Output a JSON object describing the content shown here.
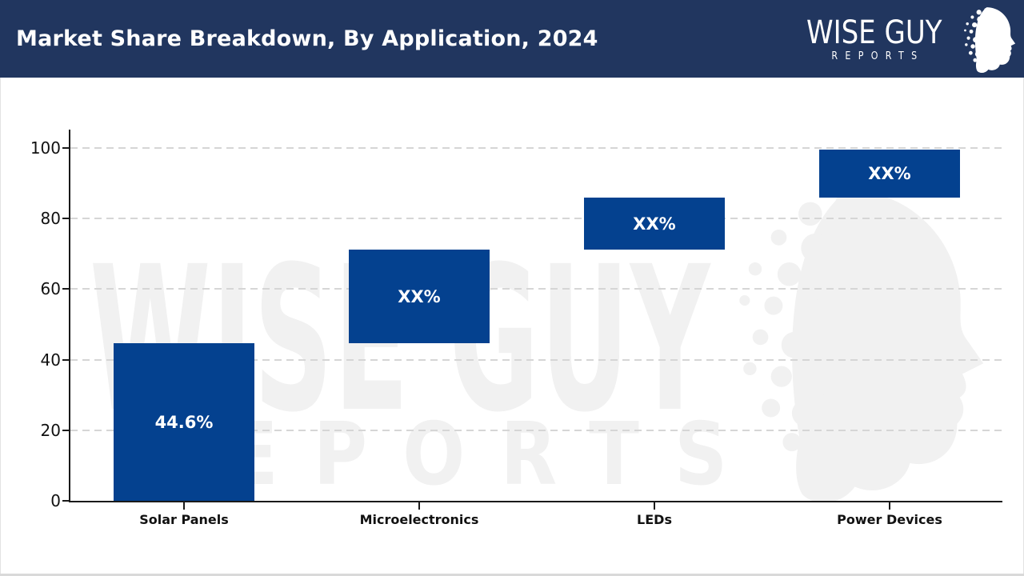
{
  "header": {
    "title": "Market Share Breakdown, By Application, 2024",
    "logo": {
      "line1": "WISE GUY",
      "line2": "REPORTS"
    }
  },
  "watermark": {
    "line1": "WISE GUY",
    "line2": "REPORTS"
  },
  "chart_data": {
    "type": "bar",
    "subtype": "waterfall",
    "title": "Market Share Breakdown, By Application, 2024",
    "categories": [
      "Solar Panels",
      "Microelectronics",
      "LEDs",
      "Power Devices"
    ],
    "segments": [
      {
        "category": "Solar Panels",
        "start": 0,
        "end": 44.6,
        "label": "44.6%"
      },
      {
        "category": "Microelectronics",
        "start": 44.6,
        "end": 71.1,
        "label": "XX%"
      },
      {
        "category": "LEDs",
        "start": 71.1,
        "end": 86.0,
        "label": "XX%"
      },
      {
        "category": "Power Devices",
        "start": 86.0,
        "end": 99.5,
        "label": "XX%"
      }
    ],
    "values_masked": true,
    "xlabel": "",
    "ylabel": "",
    "ylim": [
      0,
      105
    ],
    "yticks": [
      0,
      20,
      40,
      60,
      80,
      100
    ],
    "grid": "horizontal-dashed",
    "legend": "none",
    "bar_color": "#04418f"
  },
  "colors": {
    "header_bg": "#21365f",
    "bar": "#04418f",
    "bar_label": "#ffffff",
    "grid": "#d6d6d6",
    "axis": "#1a1a1a",
    "watermark": "#f1f1f1",
    "title_text": "#ffffff"
  }
}
